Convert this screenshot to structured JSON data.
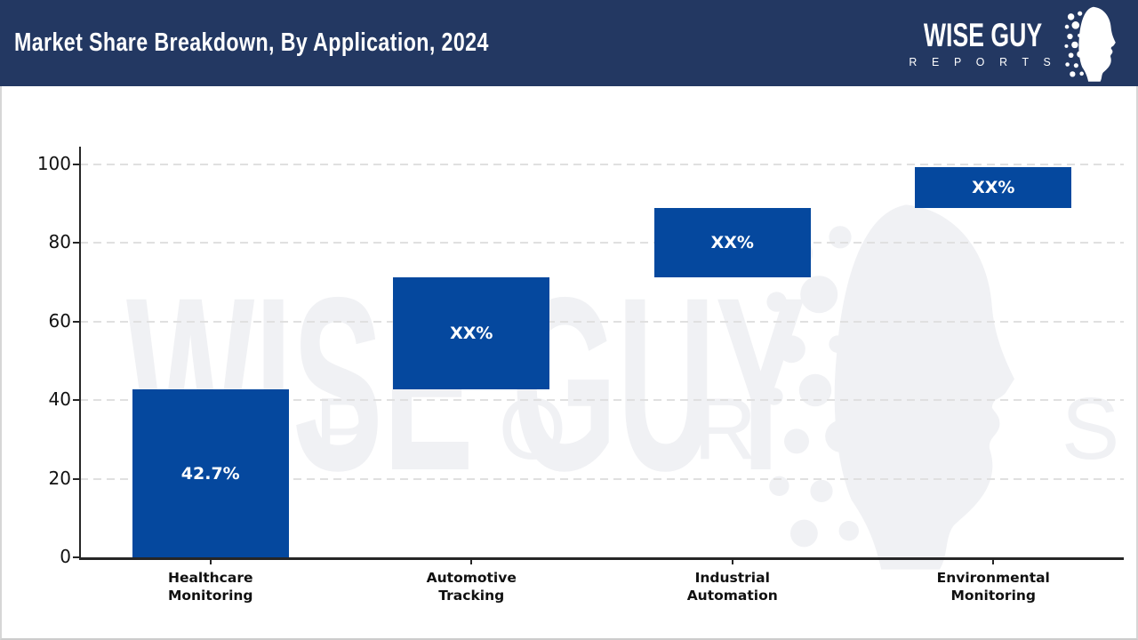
{
  "header": {
    "title": "Market Share Breakdown, By Application, 2024",
    "logo": {
      "line1": "WISE GUY",
      "line2": "R E P O R T S"
    }
  },
  "watermark": {
    "line1": "WISE GUY",
    "line2": "P O R T S"
  },
  "chart_data": {
    "type": "bar",
    "subtype": "waterfall",
    "title": "Market Share Breakdown, By Application, 2024",
    "xlabel": "",
    "ylabel": "",
    "categories": [
      {
        "line1": "Healthcare",
        "line2": "Monitoring"
      },
      {
        "line1": "Automotive",
        "line2": "Tracking"
      },
      {
        "line1": "Industrial",
        "line2": "Automation"
      },
      {
        "line1": "Environmental",
        "line2": "Monitoring"
      }
    ],
    "segments": [
      {
        "category": "Healthcare Monitoring",
        "start": 0,
        "end": 42.7,
        "label": "42.7%"
      },
      {
        "category": "Automotive Tracking",
        "start": 42.7,
        "end": 71.3,
        "label": "XX%"
      },
      {
        "category": "Industrial Automation",
        "start": 71.3,
        "end": 89.0,
        "label": "XX%"
      },
      {
        "category": "Environmental Monitoring",
        "start": 89.0,
        "end": 99.4,
        "label": "XX%"
      }
    ],
    "yticks": [
      0,
      20,
      40,
      60,
      80,
      100
    ],
    "ylim": [
      0,
      104
    ],
    "grid": "horizontal-dashed",
    "legend": "none"
  },
  "colors": {
    "header_bg": "#233862",
    "bar": "#05489e",
    "bar_label": "#ffffff",
    "grid": "#e0e0e0",
    "axis": "#262626",
    "watermark": "#f0f1f4"
  }
}
